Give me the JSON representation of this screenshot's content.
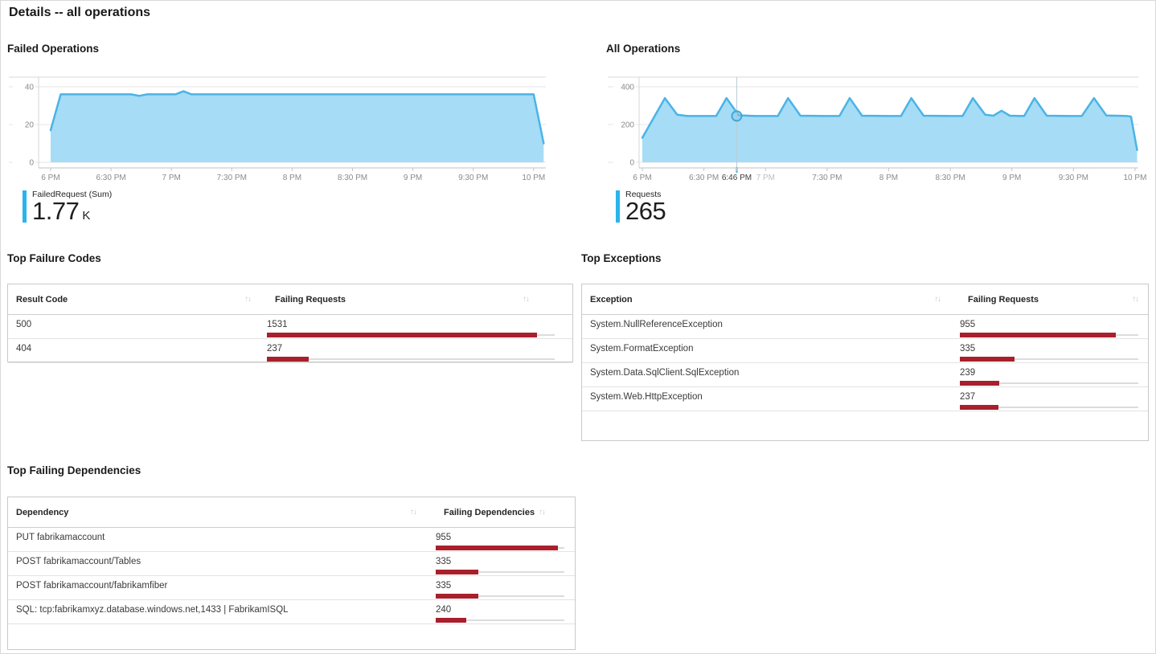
{
  "page": {
    "title": "Details -- all operations"
  },
  "colors": {
    "area_fill": "#a6dcf5",
    "area_stroke": "#4ab4e6",
    "kpi_bar": "#29b4ee",
    "data_bar": "#a8202c",
    "data_bar_track": "#dcdcdc",
    "grid": "#e6e6e6",
    "axis": "#c0c0c0"
  },
  "sort_icon": "↑↓",
  "chart_data": [
    {
      "type": "area",
      "title": "Failed Operations",
      "kpi": {
        "label": "FailedRequest (Sum)",
        "value": "1.77",
        "unit": "K"
      },
      "ylim": [
        0,
        40
      ],
      "y_ticks": [
        0,
        20,
        40
      ],
      "x_unit": "minutes after 6 PM",
      "x_ticks": [
        {
          "t": 0,
          "label": "6 PM"
        },
        {
          "t": 30,
          "label": "6:30 PM"
        },
        {
          "t": 60,
          "label": "7 PM"
        },
        {
          "t": 90,
          "label": "7:30 PM"
        },
        {
          "t": 120,
          "label": "8 PM"
        },
        {
          "t": 150,
          "label": "8:30 PM"
        },
        {
          "t": 180,
          "label": "9 PM"
        },
        {
          "t": 210,
          "label": "9:30 PM"
        },
        {
          "t": 240,
          "label": "10 PM"
        }
      ],
      "points": [
        [
          0,
          17
        ],
        [
          5,
          36
        ],
        [
          40,
          36
        ],
        [
          44,
          35.2
        ],
        [
          48,
          36
        ],
        [
          62,
          36
        ],
        [
          66,
          37.6
        ],
        [
          70,
          36
        ],
        [
          110,
          36
        ],
        [
          160,
          36
        ],
        [
          210,
          36
        ],
        [
          240,
          36
        ],
        [
          245,
          10
        ]
      ]
    },
    {
      "type": "area",
      "title": "All Operations",
      "kpi": {
        "label": "Requests",
        "value": "265",
        "unit": ""
      },
      "ylim": [
        0,
        400
      ],
      "y_ticks": [
        0,
        200,
        400
      ],
      "x_unit": "minutes after 6 PM",
      "x_ticks": [
        {
          "t": 0,
          "label": "6 PM"
        },
        {
          "t": 30,
          "label": "6:30 PM"
        },
        {
          "t": 46,
          "label": "6:46 PM",
          "style": "emph"
        },
        {
          "t": 60,
          "label": "7 PM",
          "style": "muted"
        },
        {
          "t": 90,
          "label": "7:30 PM"
        },
        {
          "t": 120,
          "label": "8 PM"
        },
        {
          "t": 150,
          "label": "8:30 PM"
        },
        {
          "t": 180,
          "label": "9 PM"
        },
        {
          "t": 210,
          "label": "9:30 PM"
        },
        {
          "t": 240,
          "label": "10 PM"
        }
      ],
      "points": [
        [
          0,
          130
        ],
        [
          11,
          340
        ],
        [
          17,
          252
        ],
        [
          22,
          245
        ],
        [
          36,
          245
        ],
        [
          41,
          340
        ],
        [
          47,
          249
        ],
        [
          55,
          245
        ],
        [
          66,
          245
        ],
        [
          71,
          340
        ],
        [
          77,
          247
        ],
        [
          90,
          245
        ],
        [
          96,
          245
        ],
        [
          101,
          340
        ],
        [
          107,
          247
        ],
        [
          120,
          245
        ],
        [
          126,
          245
        ],
        [
          131,
          340
        ],
        [
          137,
          247
        ],
        [
          150,
          245
        ],
        [
          156,
          245
        ],
        [
          161,
          340
        ],
        [
          167,
          252
        ],
        [
          171,
          247
        ],
        [
          175,
          273
        ],
        [
          179,
          247
        ],
        [
          186,
          245
        ],
        [
          191,
          340
        ],
        [
          197,
          247
        ],
        [
          208,
          245
        ],
        [
          214,
          245
        ],
        [
          220,
          340
        ],
        [
          226,
          248
        ],
        [
          236,
          245
        ],
        [
          238,
          242
        ],
        [
          241,
          65
        ]
      ],
      "crosshair": {
        "t": 46,
        "value": 245,
        "label": "6:46 PM"
      }
    }
  ],
  "tables": [
    {
      "title": "Top Failure Codes",
      "columns": [
        "Result Code",
        "Failing Requests"
      ],
      "rows": [
        {
          "label": "500",
          "value": 1531
        },
        {
          "label": "404",
          "value": 237
        }
      ]
    },
    {
      "title": "Top Exceptions",
      "columns": [
        "Exception",
        "Failing Requests"
      ],
      "rows": [
        {
          "label": "System.NullReferenceException",
          "value": 955
        },
        {
          "label": "System.FormatException",
          "value": 335
        },
        {
          "label": "System.Data.SqlClient.SqlException",
          "value": 239
        },
        {
          "label": "System.Web.HttpException",
          "value": 237
        }
      ]
    },
    {
      "title": "Top Failing Dependencies",
      "columns": [
        "Dependency",
        "Failing Dependencies"
      ],
      "rows": [
        {
          "label": "PUT fabrikamaccount",
          "value": 955
        },
        {
          "label": "POST fabrikamaccount/Tables",
          "value": 335
        },
        {
          "label": "POST fabrikamaccount/fabrikamfiber",
          "value": 335
        },
        {
          "label": "SQL: tcp:fabrikamxyz.database.windows.net,1433 | FabrikamISQL",
          "value": 240
        }
      ]
    }
  ]
}
